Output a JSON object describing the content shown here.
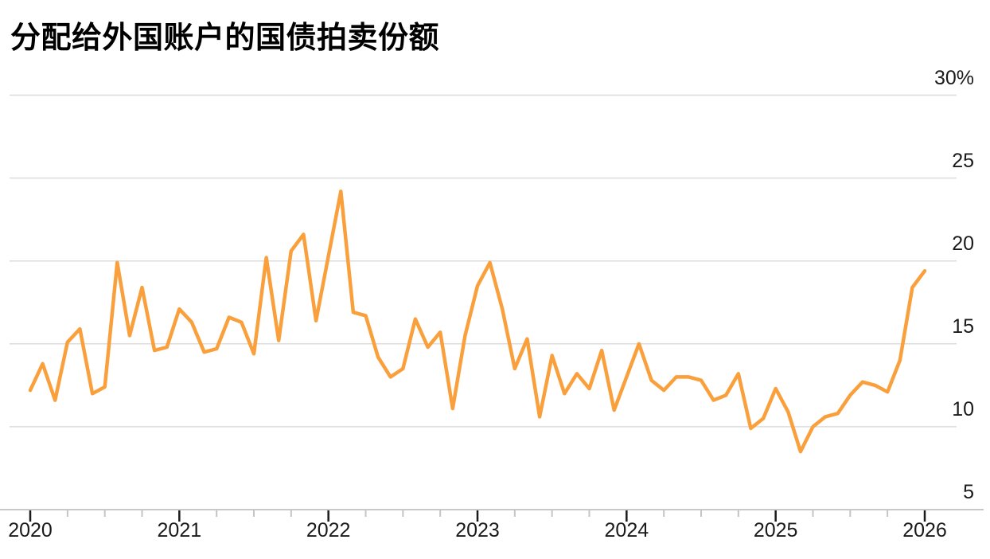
{
  "header": {
    "title": "分配给外国账户的国债拍卖份额"
  },
  "chart_data": {
    "type": "line",
    "title": "分配给外国账户的国债拍卖份额",
    "unit": "%",
    "cadence": "monthly",
    "x_start": "2020-01",
    "x_end": "2026-01",
    "x_tick_labels": [
      "2020",
      "2021",
      "2022",
      "2023",
      "2024",
      "2025",
      "2026"
    ],
    "y_tick_values": [
      30,
      25,
      20,
      15,
      10,
      5
    ],
    "y_tick_labels": [
      "30%",
      "25",
      "20",
      "15",
      "10",
      "5"
    ],
    "ylim": [
      5,
      30
    ],
    "grid": "horizontal",
    "legend": "none",
    "line_color": "#F9A03C",
    "axis_color": "#c9c9c9",
    "grid_color": "#dcdcdc",
    "tick_major_color": "#1a1a1a",
    "tick_minor_color": "#c4c4c4",
    "values": [
      12.2,
      13.8,
      11.6,
      15.1,
      15.9,
      12.0,
      12.4,
      19.9,
      15.5,
      18.4,
      14.6,
      14.8,
      17.1,
      16.3,
      14.5,
      14.7,
      16.6,
      16.3,
      14.4,
      20.2,
      15.2,
      20.6,
      21.6,
      16.4,
      20.3,
      24.2,
      16.9,
      16.7,
      14.2,
      13.0,
      13.5,
      16.5,
      14.8,
      15.7,
      11.1,
      15.5,
      18.5,
      19.9,
      17.1,
      13.5,
      15.3,
      10.6,
      14.3,
      12.0,
      13.2,
      12.3,
      14.6,
      11.0,
      13.0,
      15.0,
      12.8,
      12.2,
      13.0,
      13.0,
      12.8,
      11.6,
      11.9,
      13.2,
      9.9,
      10.5,
      12.3,
      10.9,
      8.5,
      10.0,
      10.6,
      10.8,
      11.9,
      12.7,
      12.5,
      12.1,
      14.0,
      18.4,
      19.4
    ]
  }
}
